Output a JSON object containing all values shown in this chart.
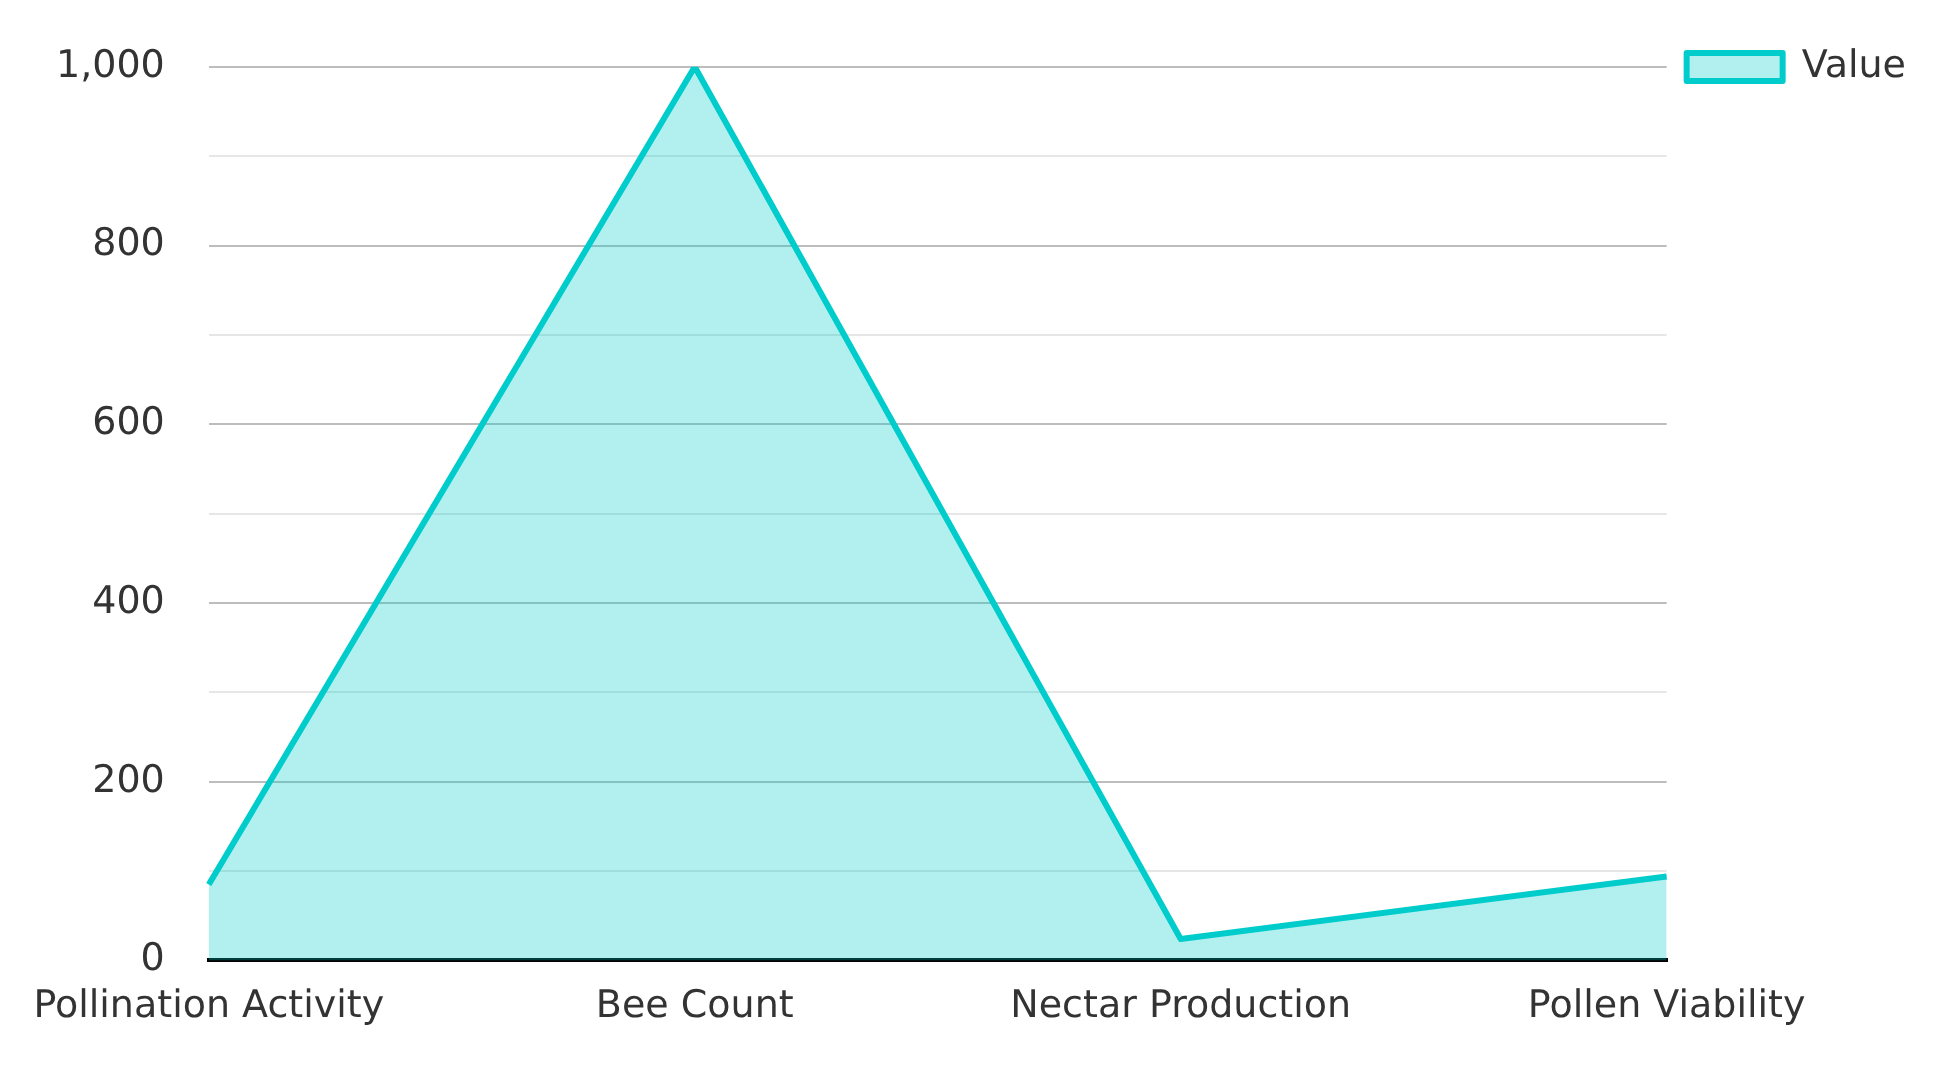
{
  "chart_data": {
    "type": "area",
    "categories": [
      "Pollination Activity",
      "Bee Count",
      "Nectar Production",
      "Pollen Viability"
    ],
    "series": [
      {
        "name": "Value",
        "color": "#00cccc",
        "values": [
          85,
          1000,
          24,
          94
        ]
      }
    ],
    "ylim": [
      0,
      1000
    ],
    "yticks": [
      0,
      {
        "value": 100,
        "label": null
      },
      200,
      {
        "value": 300,
        "label": null
      },
      400,
      {
        "value": 500,
        "label": null
      },
      600,
      {
        "value": 700,
        "label": null
      },
      800,
      {
        "value": 900,
        "label": null
      },
      {
        "value": 1000,
        "label": "1,000"
      }
    ],
    "grid": "y",
    "legend": "top right",
    "marker": "none",
    "line_style": "solid"
  }
}
